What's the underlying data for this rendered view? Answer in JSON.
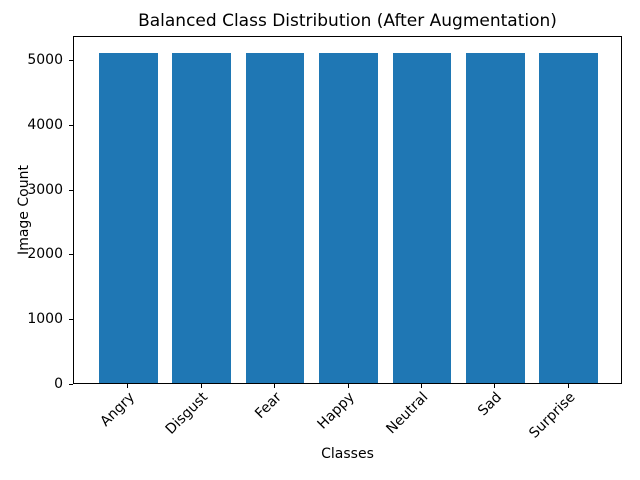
{
  "chart_data": {
    "type": "bar",
    "title": "Balanced Class Distribution (After Augmentation)",
    "xlabel": "Classes",
    "ylabel": "Image Count",
    "categories": [
      "Angry",
      "Disgust",
      "Fear",
      "Happy",
      "Neutral",
      "Sad",
      "Surprise"
    ],
    "values": [
      5100,
      5100,
      5100,
      5100,
      5100,
      5100,
      5100
    ],
    "yticks": [
      0,
      1000,
      2000,
      3000,
      4000,
      5000
    ],
    "ylim": [
      0,
      5370
    ],
    "bar_color": "#1f77b4",
    "axis_color": "#000000",
    "background_color": "#ffffff",
    "grid": false,
    "legend_position": "none",
    "xtick_rotation": 45
  }
}
